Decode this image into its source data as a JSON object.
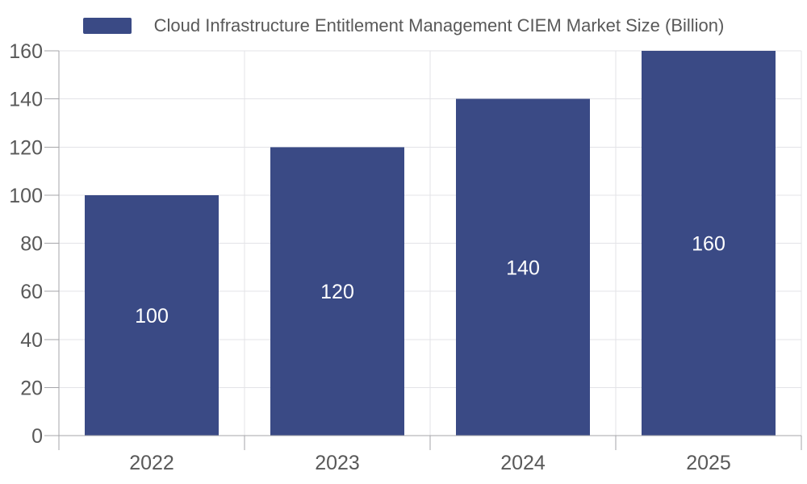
{
  "legend": {
    "label": "Cloud Infrastructure Entitlement Management CIEM Market Size (Billion)"
  },
  "colors": {
    "bar": "#3A4A85",
    "grid": "#E3E3E7",
    "axis": "#A6A6AA",
    "tick_text": "#595959",
    "bar_label": "#FFFFFF",
    "background": "#FFFFFF"
  },
  "chart_data": {
    "type": "bar",
    "title": "Cloud Infrastructure Entitlement Management CIEM Market Size (Billion)",
    "categories": [
      "2022",
      "2023",
      "2024",
      "2025"
    ],
    "series": [
      {
        "name": "Cloud Infrastructure Entitlement Management CIEM Market Size (Billion)",
        "values": [
          100,
          120,
          140,
          160
        ]
      }
    ],
    "values": [
      100,
      120,
      140,
      160
    ],
    "bar_labels": [
      "100",
      "120",
      "140",
      "160"
    ],
    "xlabel": "",
    "ylabel": "",
    "ylim": [
      0,
      160
    ],
    "ytick_step": 20,
    "yticks": [
      0,
      20,
      40,
      60,
      80,
      100,
      120,
      140,
      160
    ],
    "grid": true,
    "legend_position": "top-center"
  }
}
